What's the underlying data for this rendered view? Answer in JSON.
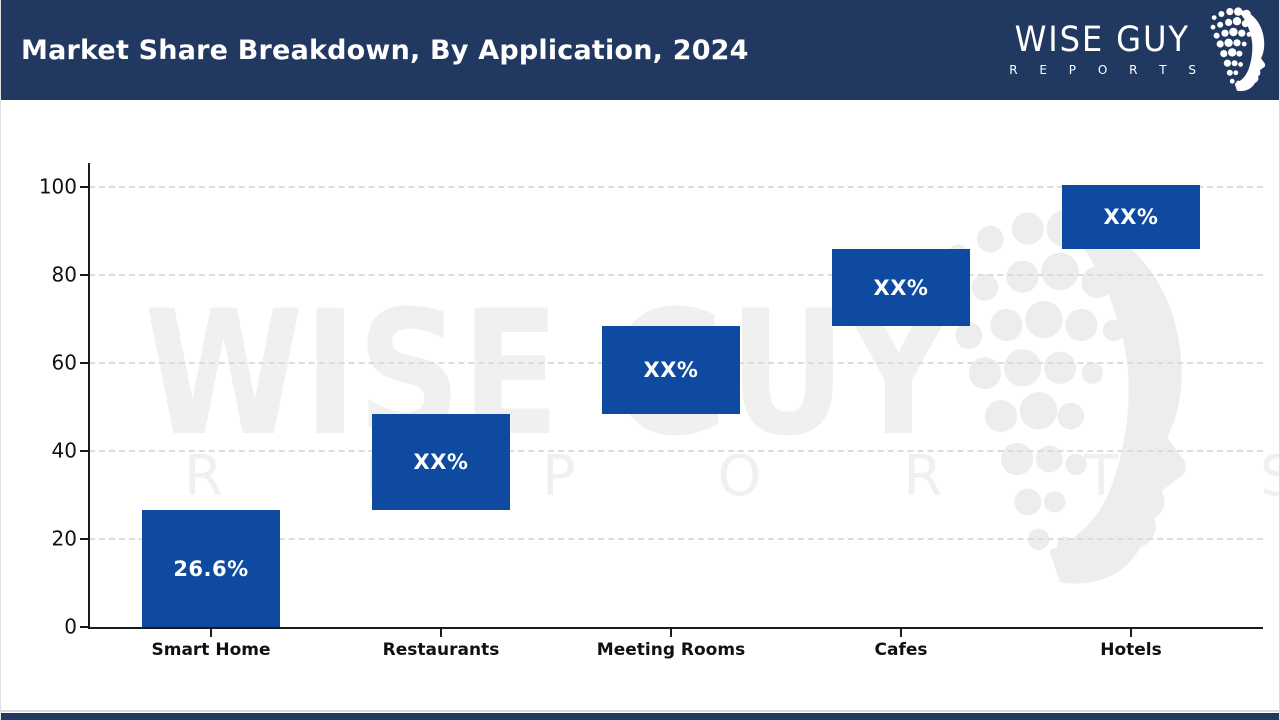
{
  "header": {
    "title": "Market Share Breakdown, By Application, 2024",
    "logo": {
      "brand": "WISE GUY",
      "tagline": "R E P O R T S"
    }
  },
  "watermark": {
    "brand": "WISE GUY",
    "tagline": "R E P O R T S"
  },
  "chart_data": {
    "type": "bar",
    "variant": "floating-waterfall",
    "title": "Market Share Breakdown, By Application, 2024",
    "categories": [
      "Smart Home",
      "Restaurants",
      "Meeting Rooms",
      "Cafes",
      "Hotels"
    ],
    "segments": [
      {
        "category": "Smart Home",
        "start": 0,
        "end": 26.6,
        "label": "26.6%"
      },
      {
        "category": "Restaurants",
        "start": 26.6,
        "end": 48.5,
        "label": "XX%"
      },
      {
        "category": "Meeting Rooms",
        "start": 48.5,
        "end": 68.5,
        "label": "XX%"
      },
      {
        "category": "Cafes",
        "start": 68.5,
        "end": 86.0,
        "label": "XX%"
      },
      {
        "category": "Hotels",
        "start": 86.0,
        "end": 100.4,
        "label": "XX%"
      }
    ],
    "y_ticks": [
      0,
      20,
      40,
      60,
      80,
      100
    ],
    "ylim": [
      0,
      105.5
    ],
    "xlabel": "",
    "ylabel": "",
    "grid": "horizontal-dashed",
    "legend": "none",
    "bar_color": "#0d4aa0",
    "value_label_color": "#ffffff"
  },
  "colors": {
    "header_bg": "#213860",
    "footer_bg": "#213860",
    "bar": "#0d4aa0",
    "gridline": "#dcdcdc",
    "axis": "#1a1a1a",
    "watermark": "#f0f0f0"
  }
}
